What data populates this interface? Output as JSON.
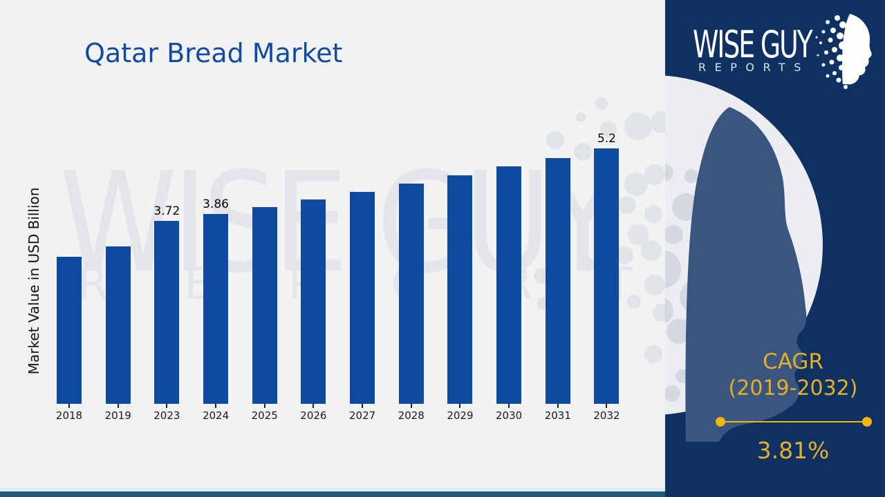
{
  "title": "Qatar Bread Market",
  "watermark": {
    "line1": "WISE GUY",
    "line2": "REPORTS"
  },
  "chart_data": {
    "type": "bar",
    "title": "Qatar Bread Market",
    "xlabel": "",
    "ylabel": "Market Value in USD Billion",
    "categories": [
      "2018",
      "2019",
      "2023",
      "2024",
      "2025",
      "2026",
      "2027",
      "2028",
      "2029",
      "2030",
      "2031",
      "2032"
    ],
    "values": [
      3.0,
      3.2,
      3.72,
      3.86,
      4.01,
      4.16,
      4.32,
      4.48,
      4.65,
      4.83,
      5.01,
      5.2
    ],
    "bar_labels": [
      "",
      "",
      "3.72",
      "3.86",
      "",
      "",
      "",
      "",
      "",
      "",
      "",
      "5.2"
    ],
    "ylim": [
      0,
      5.6
    ],
    "grid": false,
    "legend": "none",
    "bar_color": "#0d4aa0"
  },
  "brand": {
    "logo_line1": "WISE GUY",
    "logo_line2": "REPORTS",
    "cagr_label": "CAGR",
    "cagr_range": "(2019-2032)",
    "cagr_value": "3.81%",
    "panel_color": "#0e3161",
    "accent_gold": "#e3b027",
    "rule_gold": "#f0b70f"
  },
  "colors": {
    "background": "#f2f2f3",
    "title": "#114b9e",
    "bar": "#0d4aa0",
    "teal_strip": "#1f5a72",
    "lightblue_strip": "#d8ebf4",
    "watermark": "#e3e5ea"
  }
}
